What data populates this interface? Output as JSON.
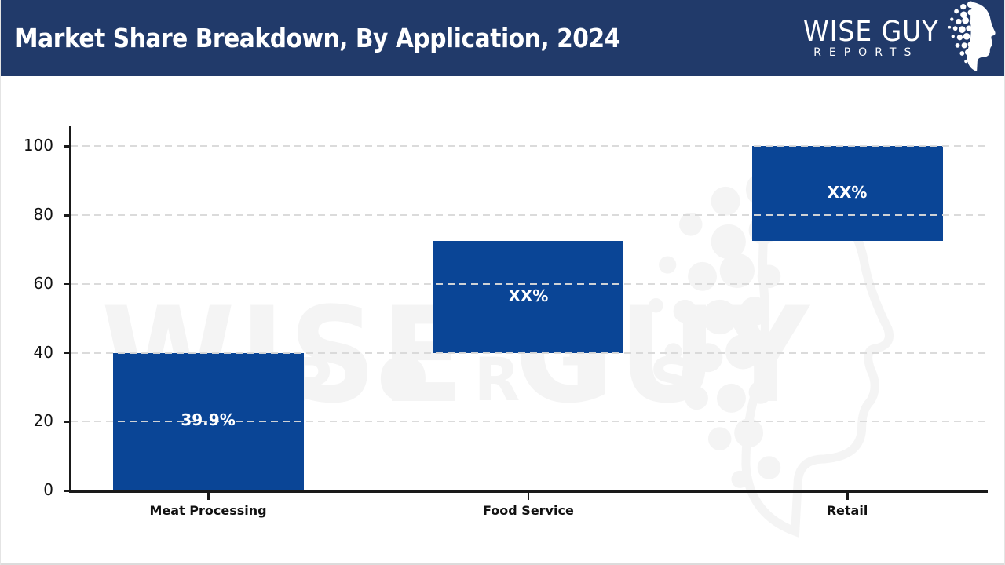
{
  "page": {
    "bg_color": "#ffffff"
  },
  "header": {
    "bg_color": "#213a6a",
    "title": "Market Share Breakdown, By Application, 2024",
    "logo": {
      "brand_line1": "WISE GUY",
      "brand_line2": "REPORTS",
      "icon": "dotted-head-profile-icon"
    }
  },
  "watermark": {
    "line1": "WISE GUY",
    "line2": "REPORTS",
    "icon": "dotted-head-profile-icon",
    "color": "#f4f4f4"
  },
  "chart_data": {
    "type": "bar",
    "subtype": "stepped-cumulative-waterfall",
    "title": "Market Share Breakdown, By Application, 2024",
    "categories": [
      "Meat Processing",
      "Food Service",
      "Retail"
    ],
    "bars": [
      {
        "category": "Meat Processing",
        "start": 0,
        "end": 39.9,
        "label": "39.9%"
      },
      {
        "category": "Food Service",
        "start": 39.9,
        "end": 72.4,
        "label": "XX%"
      },
      {
        "category": "Retail",
        "start": 72.4,
        "end": 100,
        "label": "XX%"
      }
    ],
    "xlabel": "",
    "ylabel": "",
    "ylim": [
      0,
      106
    ],
    "yticks": [
      0,
      20,
      40,
      60,
      80,
      100
    ],
    "grid": "horizontal-dashed",
    "legend": "none",
    "bar_color": "#0a4596",
    "bar_label_color": "#ffffff",
    "axis_color": "#1a1a1a",
    "gridline_color": "#d9d9d9",
    "tick_label_color": "#111111"
  }
}
